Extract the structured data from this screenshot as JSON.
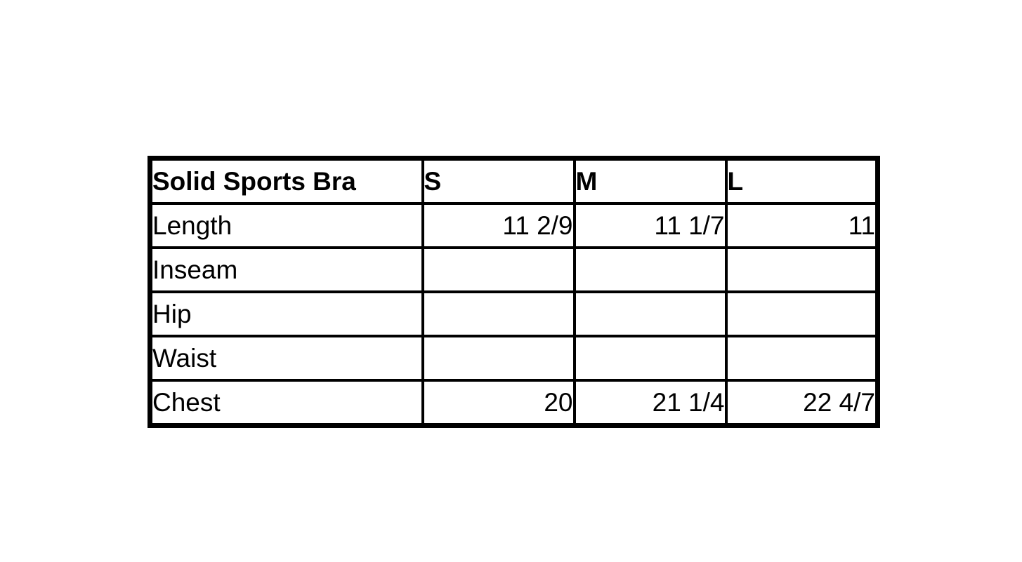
{
  "colors": {
    "background": "#ffffff",
    "border": "#000000",
    "text": "#000000"
  },
  "table": {
    "product_header": "Solid Sports Bra",
    "size_columns": [
      "S",
      "M",
      "L"
    ],
    "rows": [
      {
        "label": "Length",
        "values": [
          "11 2/9",
          "11 1/7",
          "11"
        ]
      },
      {
        "label": "Inseam",
        "values": [
          "",
          "",
          ""
        ]
      },
      {
        "label": "Hip",
        "values": [
          "",
          "",
          ""
        ]
      },
      {
        "label": "Waist",
        "values": [
          "",
          "",
          ""
        ]
      },
      {
        "label": "Chest",
        "values": [
          "20",
          "21 1/4",
          "22 4/7"
        ]
      }
    ]
  },
  "chart_data": {
    "type": "table",
    "title": "Solid Sports Bra",
    "columns": [
      "Solid Sports Bra",
      "S",
      "M",
      "L"
    ],
    "rows": [
      [
        "Length",
        "11 2/9",
        "11 1/7",
        "11"
      ],
      [
        "Inseam",
        "",
        "",
        ""
      ],
      [
        "Hip",
        "",
        "",
        ""
      ],
      [
        "Waist",
        "",
        "",
        ""
      ],
      [
        "Chest",
        "20",
        "21 1/4",
        "22 4/7"
      ]
    ],
    "notes": "Size chart grid; numeric measurement cells right-aligned; empty cells for Inseam, Hip, Waist; grid lines on"
  }
}
